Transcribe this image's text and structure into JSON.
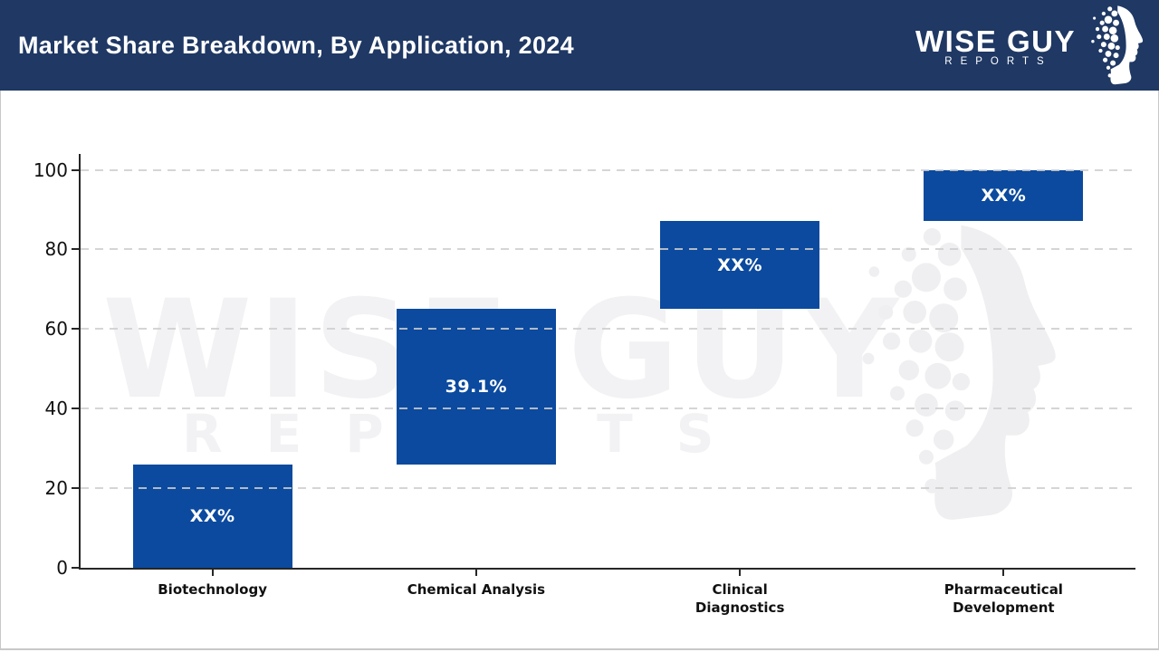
{
  "header": {
    "title": "Market Share Breakdown, By Application, 2024",
    "bg_color": "#1f3864",
    "logo": {
      "line1": "WISE GUY",
      "line2": "REPORTS"
    }
  },
  "watermark": {
    "line1": "WISE GUY",
    "line2": "REPORTS"
  },
  "chart_data": {
    "type": "bar",
    "subtype": "stacked-waterfall",
    "title": "Market Share Breakdown, By Application, 2024",
    "categories": [
      "Biotechnology",
      "Chemical Analysis",
      "Clinical\nDiagnostics",
      "Pharmaceutical\nDevelopment"
    ],
    "segments": [
      {
        "category": "Biotechnology",
        "label": "XX%",
        "start": 0,
        "end": 26.0
      },
      {
        "category": "Chemical Analysis",
        "label": "39.1%",
        "start": 26.0,
        "end": 65.1
      },
      {
        "category": "Clinical Diagnostics",
        "label": "XX%",
        "start": 65.1,
        "end": 87.1
      },
      {
        "category": "Pharmaceutical Development",
        "label": "XX%",
        "start": 87.1,
        "end": 100
      }
    ],
    "yticks": [
      0,
      20,
      40,
      60,
      80,
      100
    ],
    "ylim": [
      0,
      104
    ],
    "xlabel": "",
    "ylabel": "",
    "grid": "horizontal-dashed",
    "legend": "none",
    "bar_color": "#0b4a9e",
    "bar_label_color": "#ffffff",
    "axis_color": "#262626",
    "grid_color": "#cecece"
  }
}
